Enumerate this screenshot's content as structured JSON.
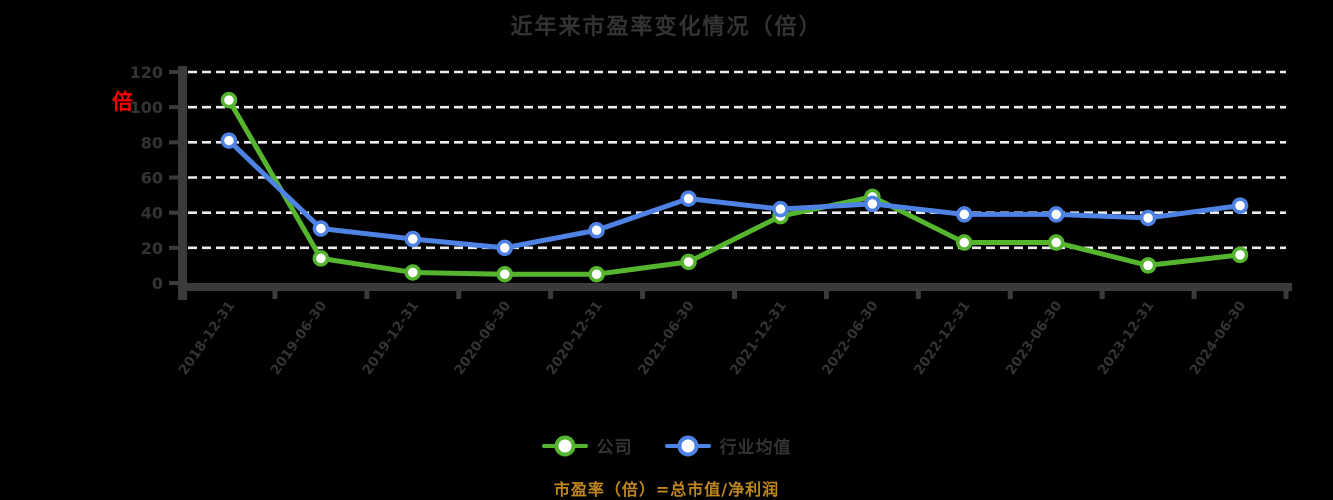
{
  "title": "近年来市盈率变化情况（倍）",
  "footnote": "市盈率（倍）=总市值/净利润",
  "colors": {
    "background": "#000000",
    "title": "#333333",
    "axis": "#3b3b3b",
    "tick_label": "#333333",
    "gridline": "#ececec",
    "company_green": "#56b52f",
    "industry_blue": "#4e82e4",
    "marker_fill": "#ffffff",
    "unit_label_red": "#ff0000",
    "footnote_orange": "#c0871e"
  },
  "y_axis": {
    "unit": "倍",
    "ticks": [
      "0",
      "20",
      "40",
      "60",
      "80",
      "100",
      "120"
    ]
  },
  "legend": {
    "items": [
      {
        "label": "公司",
        "color": "#56b52f"
      },
      {
        "label": "行业均值",
        "color": "#4e82e4"
      }
    ]
  },
  "chart_data": {
    "type": "line",
    "title": "近年来市盈率变化情况（倍）",
    "categories": [
      "2018-12-31",
      "2019-06-30",
      "2019-12-31",
      "2020-06-30",
      "2020-12-31",
      "2021-06-30",
      "2021-12-31",
      "2022-06-30",
      "2022-12-31",
      "2023-06-30",
      "2023-12-31",
      "2024-06-30"
    ],
    "series": [
      {
        "name": "公司",
        "color": "#56b52f",
        "values": [
          104,
          14,
          6,
          5,
          5,
          12,
          38,
          49,
          23,
          23,
          10,
          16
        ]
      },
      {
        "name": "行业均值",
        "color": "#4e82e4",
        "values": [
          81,
          31,
          25,
          20,
          30,
          48,
          42,
          45,
          39,
          39,
          37,
          44
        ]
      }
    ],
    "xlabel": "",
    "ylabel": "倍",
    "ylim": [
      0,
      120
    ],
    "y_interval": 20,
    "grid": true,
    "grid_style": "dashed-white",
    "legend_position": "bottom",
    "x_label_rotation": -55
  }
}
